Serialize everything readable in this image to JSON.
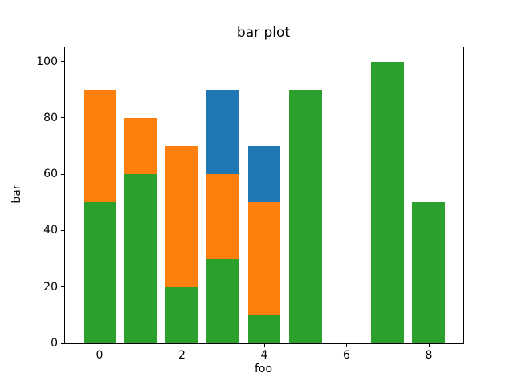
{
  "chart_data": {
    "type": "bar",
    "stacked": true,
    "title": "bar plot",
    "xlabel": "foo",
    "ylabel": "bar",
    "x": [
      0,
      1,
      2,
      3,
      4,
      5,
      6,
      7,
      8
    ],
    "series": [
      {
        "name": "green",
        "color": "#2ca02c",
        "values": [
          50,
          60,
          20,
          30,
          10,
          90,
          0,
          100,
          50
        ]
      },
      {
        "name": "orange",
        "color": "#ff7f0e",
        "values": [
          40,
          20,
          50,
          30,
          40,
          0,
          0,
          0,
          0
        ]
      },
      {
        "name": "blue",
        "color": "#1f77b4",
        "values": [
          0,
          0,
          0,
          30,
          20,
          0,
          0,
          0,
          0
        ]
      }
    ],
    "totals": [
      90,
      80,
      70,
      90,
      70,
      90,
      0,
      100,
      50
    ],
    "bar_width": 0.8,
    "xlim": [
      -0.84,
      8.84
    ],
    "ylim": [
      0,
      105
    ],
    "xticks": [
      0,
      2,
      4,
      6,
      8
    ],
    "yticks": [
      0,
      20,
      40,
      60,
      80,
      100
    ],
    "grid": false,
    "legend_visible": false,
    "background_color": "#ffffff",
    "spine_color": "#000000"
  }
}
